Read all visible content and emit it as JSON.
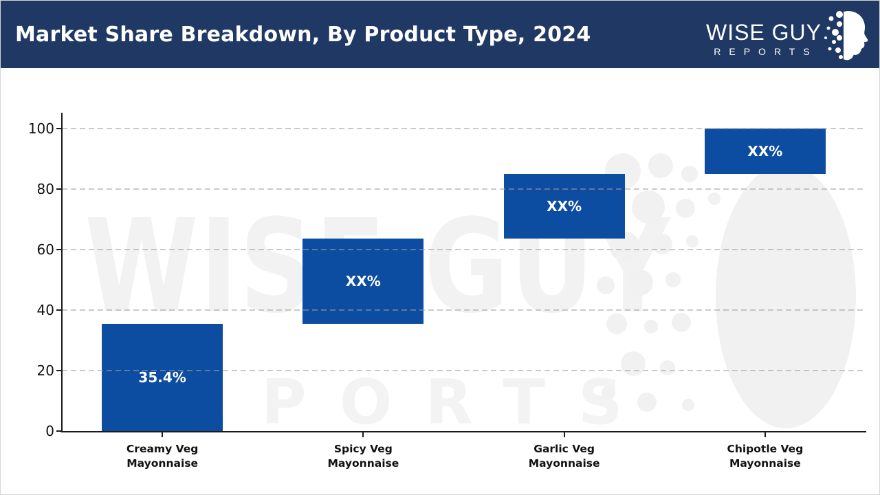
{
  "header": {
    "title": "Market Share Breakdown, By Product Type, 2024",
    "bg_color": "#1f3864",
    "logo": {
      "wordmark": "WISE GUY",
      "subtext": "REPORTS"
    }
  },
  "watermark": {
    "line1": "WISE GUY",
    "line2": "REPORTS"
  },
  "chart_data": {
    "type": "bar",
    "subtype": "waterfall",
    "title": "Market Share Breakdown, By Product Type, 2024",
    "categories": [
      "Creamy Veg\nMayonnaise",
      "Spicy Veg\nMayonnaise",
      "Garlic Veg\nMayonnaise",
      "Chipotle Veg\nMayonnaise"
    ],
    "segments": [
      {
        "category": "Creamy Veg Mayonnaise",
        "label": "35.4%",
        "start": 0,
        "end": 35.4
      },
      {
        "category": "Spicy Veg Mayonnaise",
        "label": "XX%",
        "start": 35.4,
        "end": 63.6
      },
      {
        "category": "Garlic Veg Mayonnaise",
        "label": "XX%",
        "start": 63.6,
        "end": 85
      },
      {
        "category": "Chipotle Veg Mayonnaise",
        "label": "XX%",
        "start": 85,
        "end": 100
      }
    ],
    "ylim": [
      0,
      100
    ],
    "yticks": [
      0,
      20,
      40,
      60,
      80,
      100
    ],
    "grid": "horizontal-dashed",
    "legend": "none",
    "bar_color": "#0d4da1",
    "bar_label_color": "#ffffff",
    "axis_color": "#1a1a1a"
  }
}
